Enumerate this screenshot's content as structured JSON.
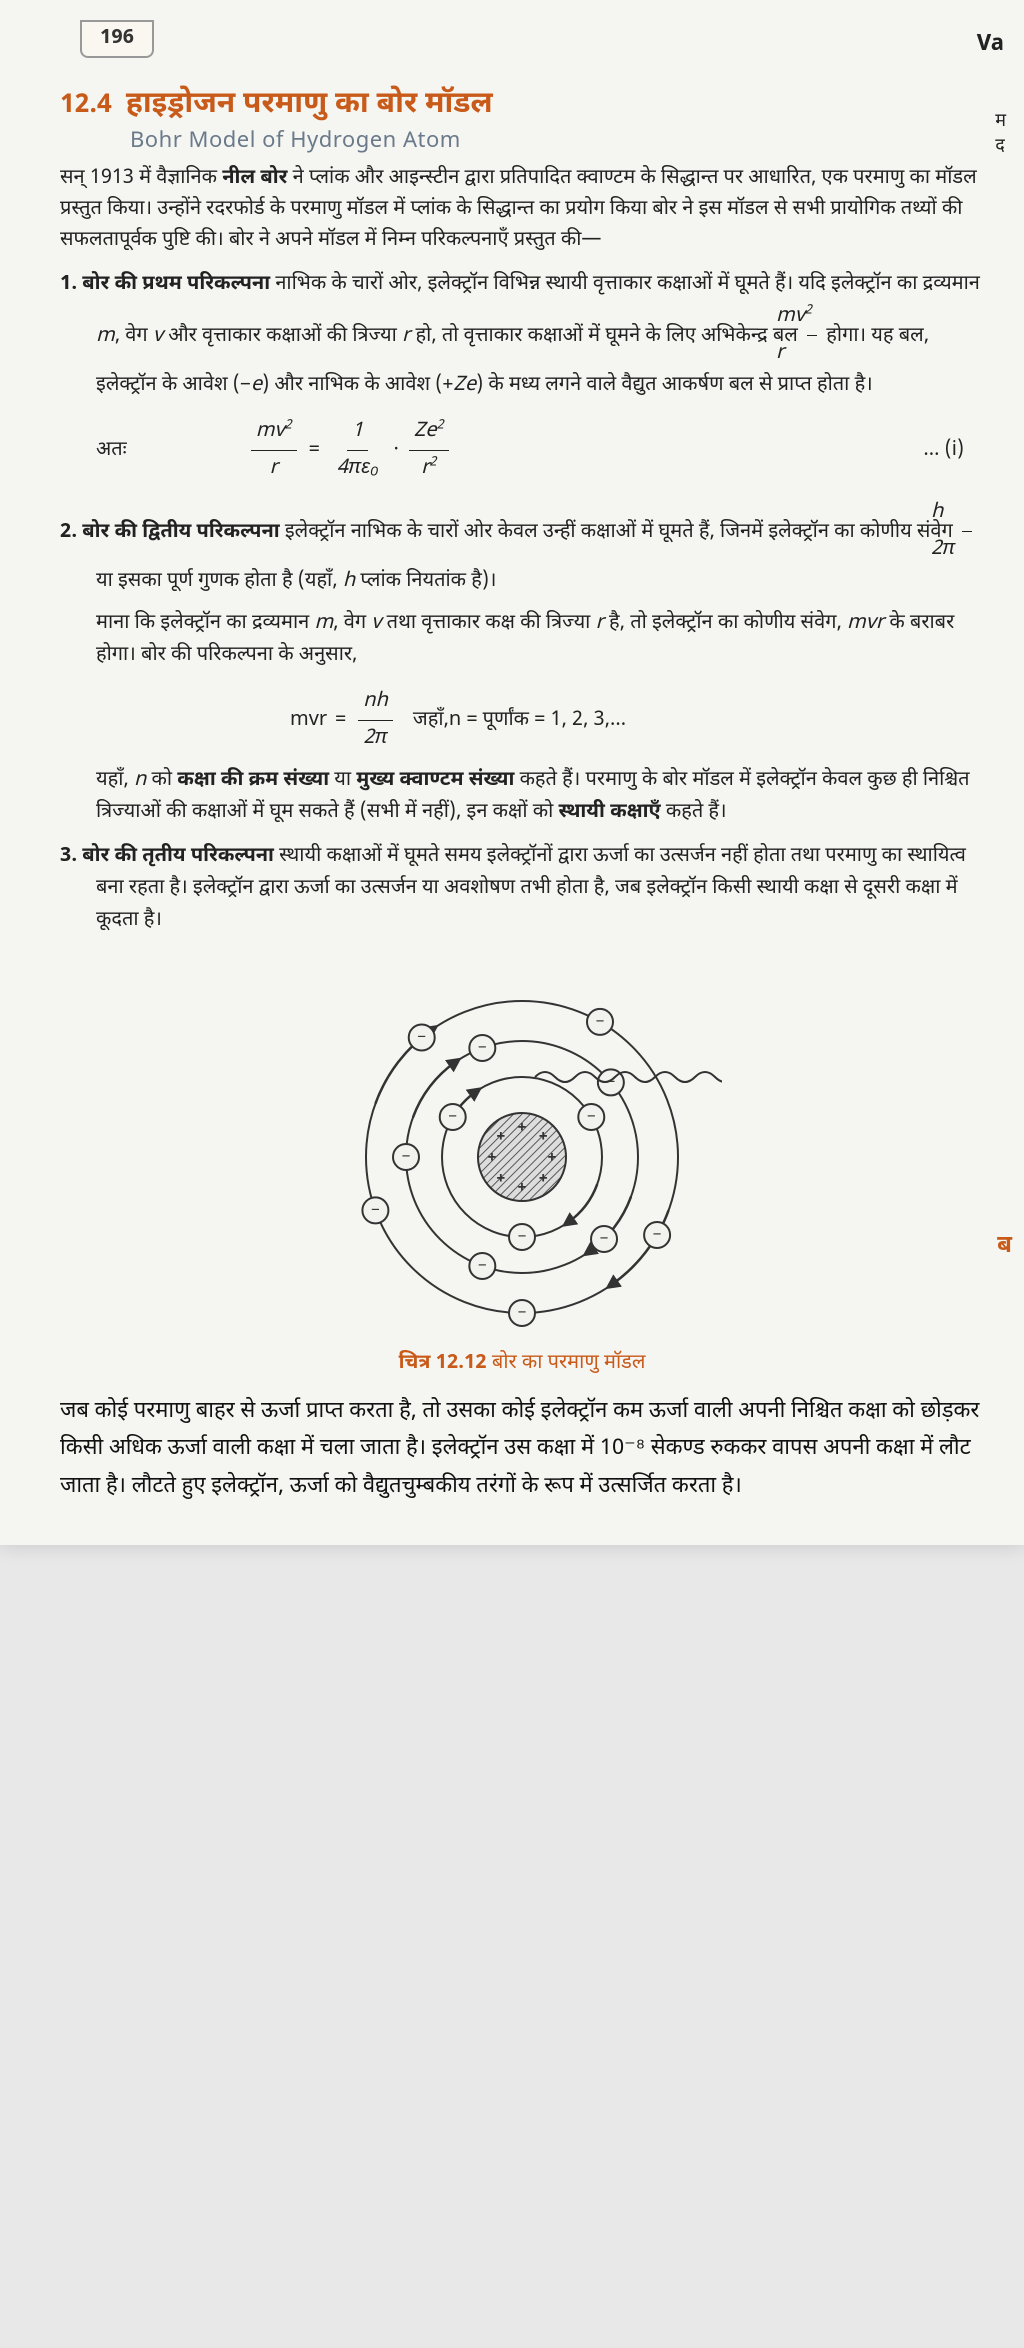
{
  "page_number": "196",
  "top_right": "Va",
  "side_chars": [
    "म",
    "द"
  ],
  "side_accent": "ब",
  "section": {
    "number": "12.4",
    "title_hi": "हाइड्रोजन परमाणु का बोर मॉडल",
    "title_en": "Bohr Model of Hydrogen Atom"
  },
  "intro": {
    "t1": "सन् 1913 में वैज्ञानिक ",
    "bold1": "नील बोर",
    "t2": " ने प्लांक और आइन्स्टीन द्वारा प्रतिपादित क्वाण्टम के सिद्धान्त पर आधारित, एक परमाणु का मॉडल प्रस्तुत किया। उन्होंने रदरफोर्ड के परमाणु मॉडल में प्लांक के सिद्धान्त का प्रयोग किया बोर ने इस मॉडल से सभी प्रायोगिक तथ्यों की सफलतापूर्वक पुष्टि की। बोर ने अपने मॉडल में निम्न परिकल्पनाएँ प्रस्तुत की—"
  },
  "p1": {
    "num": "1.",
    "lead": "बोर की प्रथम परिकल्पना",
    "t1": " नाभिक के चारों ओर, इलेक्ट्रॉन विभिन्न स्थायी वृत्ताकार कक्षाओं में घूमते हैं। यदि इलेक्ट्रॉन का द्रव्यमान ",
    "m": "m",
    "t2": ", वेग ",
    "v": "v",
    "t3": " और वृत्ताकार कक्षाओं की त्रिज्या ",
    "r": "r",
    "t4": " हो, तो वृत्ताकार कक्षाओं में घूमने के लिए अभिकेन्द्र बल ",
    "frac_top": "mv",
    "frac_bot": "r",
    "t5": " होगा। यह बल, इलेक्ट्रॉन के आवेश (−",
    "e": "e",
    "t6": ") और नाभिक के आवेश (+",
    "Ze": "Ze",
    "t7": ") के मध्य लगने वाले वैद्युत आकर्षण बल से प्राप्त होता है।"
  },
  "eq_i": {
    "label": "अतः",
    "lhs_top": "mv",
    "lhs_bot": "r",
    "eq": "=",
    "f1_top": "1",
    "f1_bot": "4πε₀",
    "dot": "·",
    "f2_top": "Ze",
    "f2_bot": "r",
    "tag": "... (i)"
  },
  "p2": {
    "num": "2.",
    "lead": "बोर की द्वितीय परिकल्पना",
    "t1": " इलेक्ट्रॉन नाभिक के चारों ओर केवल उन्हीं कक्षाओं में घूमते हैं, जिनमें इलेक्ट्रॉन का कोणीय संवेग ",
    "frac_top": "h",
    "frac_bot": "2π",
    "t2": " या इसका पूर्ण गुणक होता है (यहाँ, ",
    "h": "h",
    "t3": " प्लांक नियतांक है)।",
    "s2a": "माना कि इलेक्ट्रॉन का द्रव्यमान ",
    "m": "m",
    "s2b": ", वेग ",
    "v": "v",
    "s2c": " तथा वृत्ताकार कक्ष की त्रिज्या ",
    "r": "r",
    "s2d": " है, तो इलेक्ट्रॉन का कोणीय संवेग, ",
    "mvr": "mvr",
    "s2e": " के बराबर होगा। बोर की परिकल्पना के अनुसार,"
  },
  "eq_ii": {
    "lhs": "mvr",
    "eq": "=",
    "top": "nh",
    "bot": "2π",
    "where": "जहाँ, ",
    "cond": "n = पूर्णांक = 1, 2, 3,…"
  },
  "p2_after": {
    "t1": "यहाँ, ",
    "n": "n",
    "t2": " को ",
    "b1": "कक्षा की क्रम संख्या",
    "t3": " या ",
    "b2": "मुख्य क्वाण्टम संख्या",
    "t4": " कहते हैं। परमाणु के बोर मॉडल में इलेक्ट्रॉन केवल कुछ ही निश्चित त्रिज्याओं की कक्षाओं में घूम सकते हैं (सभी में नहीं), इन कक्षों को ",
    "b3": "स्थायी कक्षाएँ",
    "t5": " कहते हैं।"
  },
  "p3": {
    "num": "3.",
    "lead": "बोर की तृतीय परिकल्पना",
    "t1": " स्थायी कक्षाओं में घूमते समय इलेक्ट्रॉनों द्वारा ऊर्जा का उत्सर्जन नहीं होता तथा परमाणु का स्थायित्व बना रहता है। इलेक्ट्रॉन द्वारा ऊर्जा का उत्सर्जन या अवशोषण तभी होता है, जब इलेक्ट्रॉन किसी स्थायी कक्षा से दूसरी कक्षा में कूदता है।"
  },
  "figure": {
    "caption_num": "चित्र 12.12",
    "caption_text": " बोर का परमाणु मॉडल",
    "orbit_stroke": "#333333",
    "electron_fill": "#f2f2ee",
    "signs_color": "#333333",
    "hatch_color": "#555555",
    "radii": [
      44,
      80,
      116,
      156
    ],
    "electrons": [
      {
        "r": 80,
        "a": 90
      },
      {
        "r": 80,
        "a": 210
      },
      {
        "r": 80,
        "a": 330
      },
      {
        "r": 116,
        "a": 45
      },
      {
        "r": 116,
        "a": 110
      },
      {
        "r": 116,
        "a": 180
      },
      {
        "r": 116,
        "a": 250
      },
      {
        "r": 116,
        "a": 320
      },
      {
        "r": 156,
        "a": 30
      },
      {
        "r": 156,
        "a": 90
      },
      {
        "r": 156,
        "a": 160
      },
      {
        "r": 156,
        "a": 230
      },
      {
        "r": 156,
        "a": 300
      }
    ]
  },
  "final": {
    "t1": "जब कोई परमाणु बाहर से ऊर्जा प्राप्त करता है, तो उसका कोई इलेक्ट्रॉन कम ऊर्जा वाली अपनी निश्चित कक्षा को छोड़कर किसी अधिक ऊर्जा वाली कक्षा में चला जाता है। इलेक्ट्रॉन उस कक्षा में 10⁻⁸ सेकण्ड रुककर वापस अपनी कक्षा में लौट जाता है। लौटते हुए इलेक्ट्रॉन, ऊर्जा को वैद्युतचुम्बकीय तरंगों के रूप में उत्सर्जित करता है।"
  }
}
